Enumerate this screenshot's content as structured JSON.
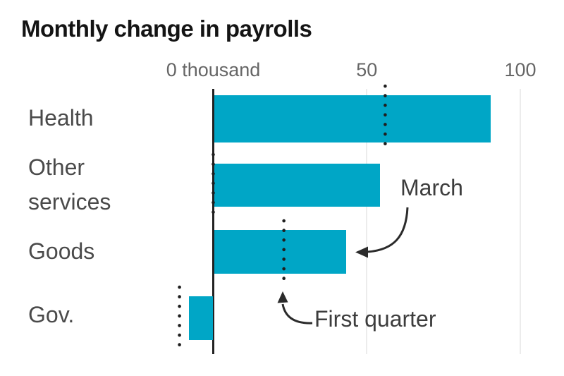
{
  "title": "Monthly change in payrolls",
  "axis": {
    "unit": "thousand",
    "ticks": [
      {
        "value": 0,
        "label": "0 thousand"
      },
      {
        "value": 50,
        "label": "50"
      },
      {
        "value": 100,
        "label": "100"
      }
    ]
  },
  "chart_data": {
    "type": "bar",
    "orientation": "horizontal",
    "title": "Monthly change in payrolls",
    "categories": [
      "Health",
      "Other services",
      "Goods",
      "Gov."
    ],
    "series": [
      {
        "name": "March",
        "style": "solid-bar",
        "color": "#00a6c6",
        "values": [
          90,
          54,
          43,
          -8
        ]
      },
      {
        "name": "First quarter",
        "style": "dotted-line",
        "color": "#1f1f1f",
        "values": [
          56,
          0,
          23,
          -11
        ]
      }
    ],
    "xlabel": "thousand",
    "xlim": [
      -14,
      114
    ],
    "x_ticks": [
      0,
      50,
      100
    ],
    "grid": "vertical-light",
    "legend": "annotated-arrows",
    "annotations": [
      {
        "text": "March",
        "points_to": "Goods bar (March value)"
      },
      {
        "text": "First quarter",
        "points_to": "Goods dotted first-quarter marker"
      }
    ]
  },
  "colors": {
    "bar": "#00a6c6",
    "axis": "#222222",
    "gridline": "#ececec",
    "title_text": "#141414",
    "category_text": "#4a4a4a",
    "tick_text": "#666666",
    "marker_dots": "#1f1f1f",
    "annotation_text": "#3d3d3d"
  }
}
